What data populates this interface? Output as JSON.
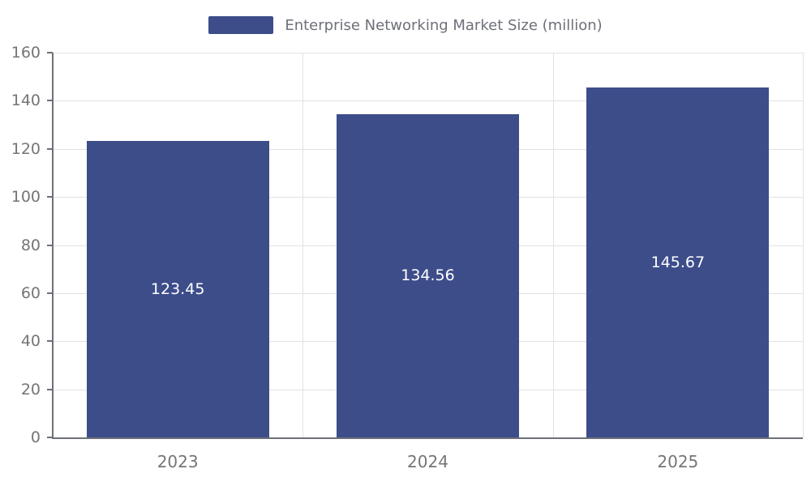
{
  "legend": {
    "label": "Enterprise Networking Market Size (million)"
  },
  "chart_data": {
    "type": "bar",
    "title": "Enterprise Networking Market Size (million)",
    "categories": [
      "2023",
      "2024",
      "2025"
    ],
    "values": [
      123.45,
      134.56,
      145.67
    ],
    "value_labels": [
      "123.45",
      "134.56",
      "145.67"
    ],
    "xlabel": "",
    "ylabel": "",
    "ylim": [
      0,
      160
    ],
    "y_ticks": [
      0,
      20,
      40,
      60,
      80,
      100,
      120,
      140,
      160
    ],
    "grid": true,
    "legend_position": "top-center",
    "colors": {
      "bar": "#3d4d8a",
      "value_label": "#ffffff",
      "grid_line": "#e2e2e2",
      "axis_line": "#6e7079",
      "tick_text": "#757575",
      "legend_text": "#6e7079"
    }
  }
}
